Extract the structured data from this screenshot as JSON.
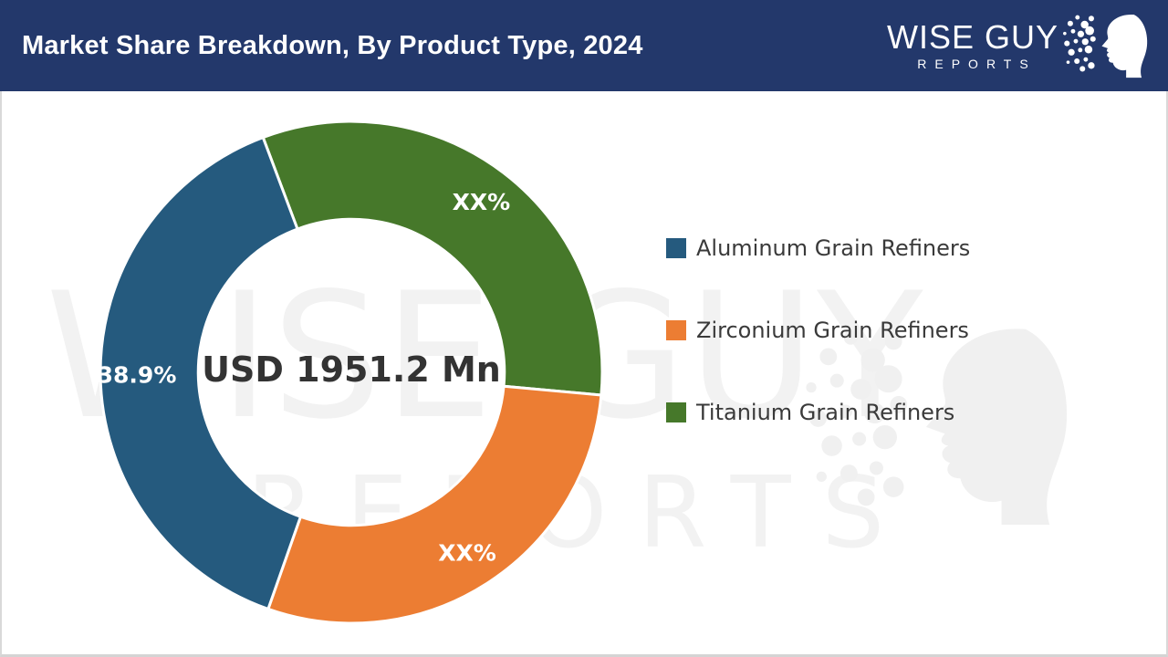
{
  "header": {
    "title": "Market Share Breakdown, By Product Type, 2024",
    "bg_color": "#23386B",
    "logo": {
      "line1": "WISE GUY",
      "line2": "REPORTS"
    }
  },
  "chart_data": {
    "type": "pie",
    "subtype": "donut",
    "title": "Market Share Breakdown, By Product Type, 2024",
    "center_label": "USD 1951.2 Mn",
    "start_angle_deg": -20.6,
    "inner_radius_ratio": 0.61,
    "legend_position": "right",
    "slices": [
      {
        "name": "Titanium Grain Refiners",
        "value_pct": 32.17,
        "data_label": "XX%",
        "color": "#46782A"
      },
      {
        "name": "Zirconium Grain Refiners",
        "value_pct": 28.93,
        "data_label": "XX%",
        "color": "#EC7D33"
      },
      {
        "name": "Aluminum Grain Refiners",
        "value_pct": 38.9,
        "data_label": "38.9%",
        "color": "#255A7E"
      }
    ]
  },
  "legend": {
    "items": [
      {
        "label": "Aluminum Grain Refiners",
        "color": "#255A7E"
      },
      {
        "label": "Zirconium Grain Refiners",
        "color": "#EC7D33"
      },
      {
        "label": "Titanium Grain Refiners",
        "color": "#46782A"
      }
    ]
  },
  "watermark": {
    "line1": "WISE GUY",
    "line2": "REPORTS"
  }
}
